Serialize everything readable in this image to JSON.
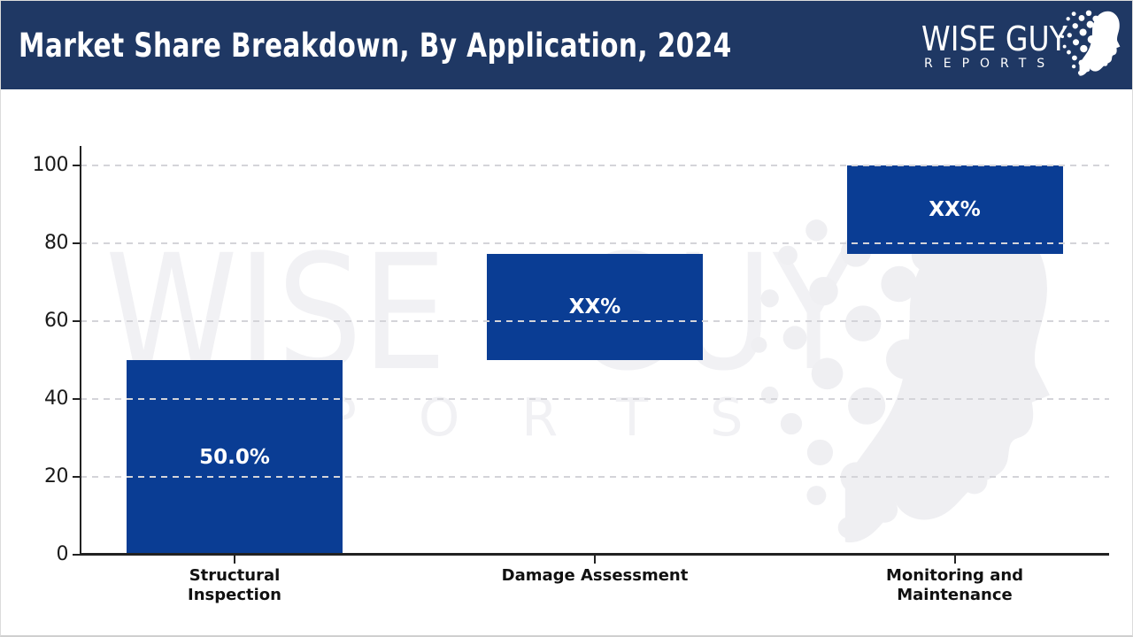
{
  "header": {
    "title": "Market Share Breakdown, By Application, 2024",
    "bg_color": "#1F3864",
    "text_color": "#FFFFFF",
    "logo": {
      "wordmark": "WISE GUY",
      "subtext": "REPORTS",
      "face_icon": "dot-face-profile"
    }
  },
  "watermark": {
    "wordmark": "WISE GUY",
    "subtext": "REPORTS",
    "color": "#F1F1F4"
  },
  "chart_data": {
    "type": "bar",
    "subtype": "floating stacked percentage bars (waterfall style)",
    "title": "Market Share Breakdown, By Application, 2024",
    "categories": [
      "Structural Inspection",
      "Damage Assessment",
      "Monitoring and Maintenance"
    ],
    "categories_lines": [
      [
        "Structural",
        "Inspection"
      ],
      [
        "Damage Assessment"
      ],
      [
        "Monitoring and",
        "Maintenance"
      ]
    ],
    "series": [
      {
        "category": "Structural Inspection",
        "base": 0,
        "top": 50,
        "label": "50.0%"
      },
      {
        "category": "Damage Assessment",
        "base": 50,
        "top": 77.3,
        "label": "XX%"
      },
      {
        "category": "Monitoring and Maintenance",
        "base": 77.3,
        "top": 100,
        "label": "XX%"
      }
    ],
    "xlabel": "",
    "ylabel": "",
    "ylim": [
      0,
      104.8
    ],
    "yticks": [
      0,
      20,
      40,
      60,
      80,
      100
    ],
    "grid": "horizontal dashed gridlines drawn above bars",
    "legend": "none",
    "bar_color": "#0A3D94",
    "bar_label_color": "#FFFFFF",
    "axis_color": "#1A1A1A",
    "gridline_color": "#D7D7DC"
  }
}
